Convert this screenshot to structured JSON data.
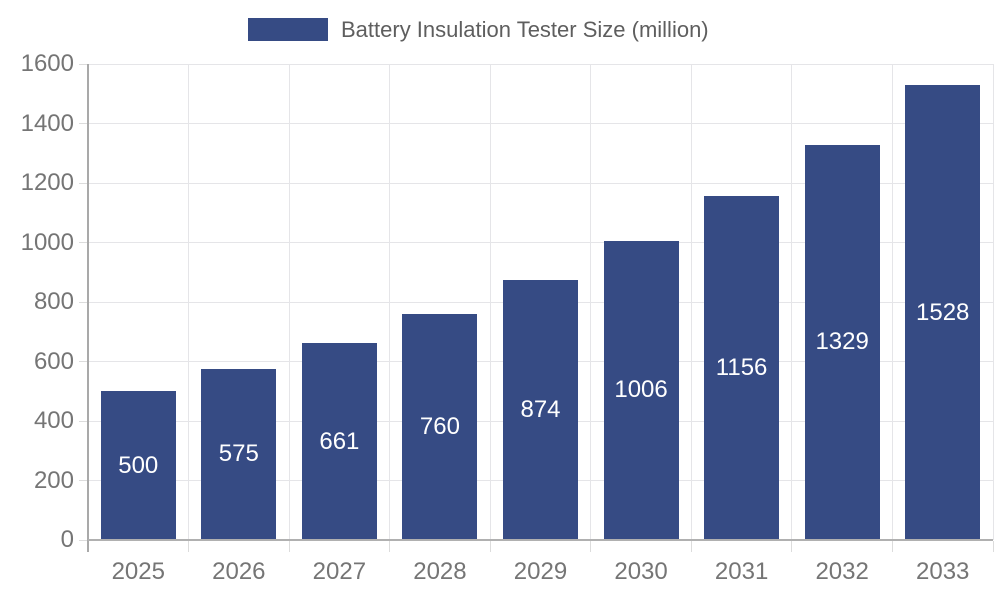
{
  "chart_data": {
    "type": "bar",
    "title": "Battery Insulation Tester Size (million)",
    "legend": {
      "position": "top",
      "entries": [
        "Battery Insulation Tester Size (million)"
      ]
    },
    "categories": [
      "2025",
      "2026",
      "2027",
      "2028",
      "2029",
      "2030",
      "2031",
      "2032",
      "2033"
    ],
    "values": [
      500,
      575,
      661,
      760,
      874,
      1006,
      1156,
      1329,
      1528
    ],
    "value_labels": [
      "500",
      "575",
      "661",
      "760",
      "874",
      "1006",
      "1156",
      "1329",
      "1528"
    ],
    "xlabel": "",
    "ylabel": "",
    "ylim": [
      0,
      1600
    ],
    "ytick_interval": 200,
    "ytick_labels": [
      "0",
      "200",
      "400",
      "600",
      "800",
      "1000",
      "1200",
      "1400",
      "1600"
    ],
    "grid": true,
    "colors": {
      "bar": "#364b84",
      "value_label": "#ffffff",
      "axis_label": "#757575",
      "legend_text": "#5e5e5e",
      "gridline": "#e5e5e8",
      "axis_line": "#a9a9a9"
    }
  }
}
